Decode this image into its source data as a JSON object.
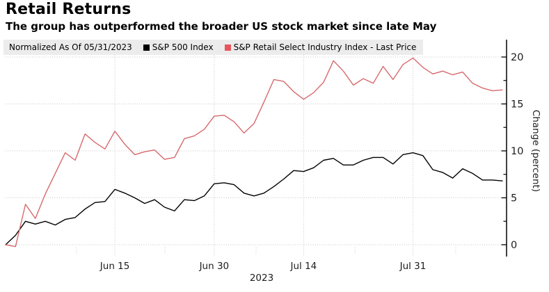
{
  "header": {
    "title": "Retail Returns",
    "subtitle": "The group has outperformed the broader US stock market since late May"
  },
  "legend": {
    "note": "Normalized As Of 05/31/2023",
    "series": [
      {
        "label": "S&P 500 Index",
        "color": "#000000"
      },
      {
        "label": "S&P Retail Select Industry Index - Last Price",
        "color": "#e8555c"
      }
    ]
  },
  "chart_data": {
    "type": "line",
    "title": "Retail Returns",
    "subtitle": "The group has outperformed the broader US stock market since late May",
    "ylabel": "Change (percent)",
    "yticks": [
      0,
      5,
      10,
      15,
      20
    ],
    "ylim": [
      -1.3,
      21.9
    ],
    "grid": "dotted",
    "legend_position": "top",
    "year_label": "2023",
    "x_dates": [
      "05/31",
      "06/01",
      "06/02",
      "06/05",
      "06/06",
      "06/07",
      "06/08",
      "06/09",
      "06/12",
      "06/13",
      "06/14",
      "06/15",
      "06/16",
      "06/20",
      "06/21",
      "06/22",
      "06/23",
      "06/26",
      "06/27",
      "06/28",
      "06/29",
      "06/30",
      "07/03",
      "07/05",
      "07/06",
      "07/07",
      "07/10",
      "07/11",
      "07/12",
      "07/13",
      "07/14",
      "07/17",
      "07/18",
      "07/19",
      "07/20",
      "07/21",
      "07/24",
      "07/25",
      "07/26",
      "07/27",
      "07/28",
      "07/31",
      "08/01",
      "08/02",
      "08/03",
      "08/04",
      "08/07",
      "08/08",
      "08/09",
      "08/10",
      "08/11"
    ],
    "xticks": [
      {
        "index": 11,
        "label": "Jun 15"
      },
      {
        "index": 21,
        "label": "Jun 30"
      },
      {
        "index": 30,
        "label": "Jul 14"
      },
      {
        "index": 41,
        "label": "Jul 31"
      }
    ],
    "series": [
      {
        "name": "S&P 500 Index",
        "color": "#000000",
        "values": [
          0.0,
          1.0,
          2.5,
          2.2,
          2.5,
          2.1,
          2.7,
          2.9,
          3.8,
          4.5,
          4.6,
          5.9,
          5.5,
          5.0,
          4.4,
          4.8,
          4.0,
          3.6,
          4.8,
          4.7,
          5.2,
          6.5,
          6.6,
          6.4,
          5.5,
          5.2,
          5.5,
          6.2,
          7.0,
          7.9,
          7.8,
          8.2,
          9.0,
          9.2,
          8.5,
          8.5,
          9.0,
          9.3,
          9.3,
          8.6,
          9.6,
          9.8,
          9.5,
          8.0,
          7.7,
          7.1,
          8.1,
          7.6,
          6.9,
          6.9,
          6.8
        ]
      },
      {
        "name": "S&P Retail Select Industry Index - Last Price",
        "color": "#d6696d",
        "values": [
          0.0,
          -0.2,
          4.3,
          2.8,
          5.4,
          7.6,
          9.8,
          9.0,
          11.8,
          10.9,
          10.2,
          12.1,
          10.7,
          9.6,
          9.9,
          10.1,
          9.1,
          9.3,
          11.3,
          11.6,
          12.3,
          13.7,
          13.8,
          13.1,
          11.9,
          12.9,
          15.2,
          17.6,
          17.4,
          16.3,
          15.5,
          16.2,
          17.3,
          19.6,
          18.5,
          17.0,
          17.7,
          17.2,
          19.0,
          17.6,
          19.2,
          19.9,
          18.9,
          18.2,
          18.5,
          18.1,
          18.4,
          17.2,
          16.7,
          16.4,
          16.5
        ]
      }
    ]
  }
}
